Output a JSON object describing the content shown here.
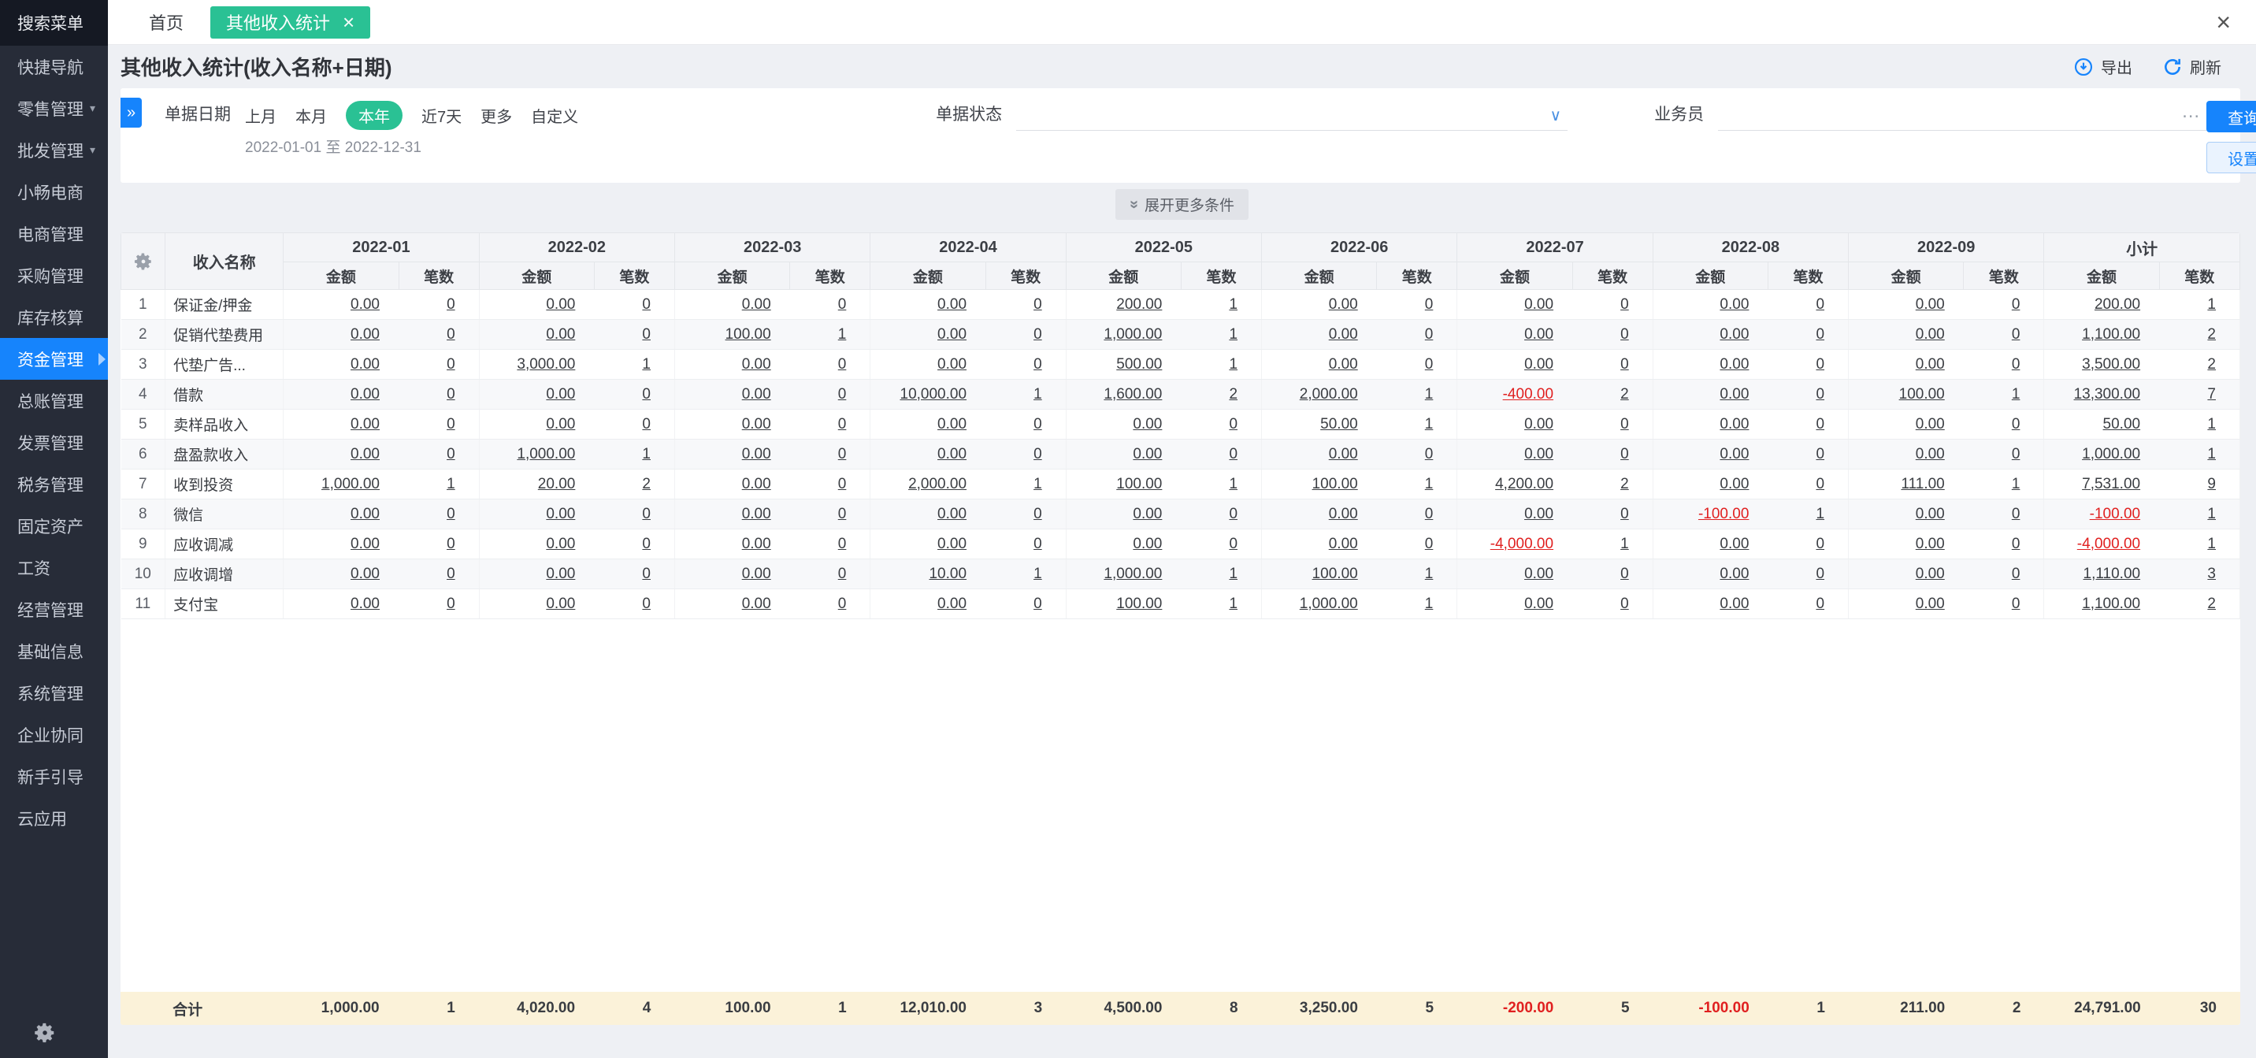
{
  "sidebar": {
    "search": "搜索菜单",
    "items": [
      {
        "label": "快捷导航"
      },
      {
        "label": "零售管理",
        "caret": true
      },
      {
        "label": "批发管理",
        "caret": true
      },
      {
        "label": "小畅电商"
      },
      {
        "label": "电商管理"
      },
      {
        "label": "采购管理"
      },
      {
        "label": "库存核算"
      },
      {
        "label": "资金管理",
        "active": true
      },
      {
        "label": "总账管理"
      },
      {
        "label": "发票管理"
      },
      {
        "label": "税务管理"
      },
      {
        "label": "固定资产"
      },
      {
        "label": "工资"
      },
      {
        "label": "经营管理"
      },
      {
        "label": "基础信息"
      },
      {
        "label": "系统管理"
      },
      {
        "label": "企业协同"
      },
      {
        "label": "新手引导"
      },
      {
        "label": "云应用"
      }
    ]
  },
  "tabs": {
    "home": "首页",
    "active": "其他收入统计",
    "close": "×"
  },
  "page": {
    "title": "其他收入统计(收入名称+日期)",
    "export": "导出",
    "refresh": "刷新"
  },
  "filters": {
    "date_label": "单据日期",
    "quick_options": [
      "上月",
      "本月",
      "本年",
      "近7天",
      "更多",
      "自定义"
    ],
    "active_option": "本年",
    "date_range": "2022-01-01 至 2022-12-31",
    "status_label": "单据状态",
    "salesman_label": "业务员",
    "query_button": "查询",
    "settings_button": "设置",
    "expand_button": "展开更多条件",
    "more_dots": "…",
    "select_chevron": "∨",
    "collapse_glyph": "»"
  },
  "icons": {
    "export": "circle-download-icon",
    "refresh": "refresh-icon",
    "column_settings": "gear-icon",
    "sidebar_settings": "gear-icon",
    "expand_more": "double-chevron-down-icon",
    "collapse_panel": "double-chevron-right-icon"
  },
  "grid": {
    "name_header": "收入名称",
    "sub_headers": [
      "金额",
      "笔数"
    ],
    "months": [
      "2022-01",
      "2022-02",
      "2022-03",
      "2022-04",
      "2022-05",
      "2022-06",
      "2022-07",
      "2022-08",
      "2022-09",
      "小计"
    ],
    "rows": [
      {
        "name": "保证金/押金",
        "cells": [
          [
            "0.00",
            "0"
          ],
          [
            "0.00",
            "0"
          ],
          [
            "0.00",
            "0"
          ],
          [
            "0.00",
            "0"
          ],
          [
            "200.00",
            "1"
          ],
          [
            "0.00",
            "0"
          ],
          [
            "0.00",
            "0"
          ],
          [
            "0.00",
            "0"
          ],
          [
            "0.00",
            "0"
          ],
          [
            "200.00",
            "1"
          ]
        ]
      },
      {
        "name": "促销代垫费用",
        "cells": [
          [
            "0.00",
            "0"
          ],
          [
            "0.00",
            "0"
          ],
          [
            "100.00",
            "1"
          ],
          [
            "0.00",
            "0"
          ],
          [
            "1,000.00",
            "1"
          ],
          [
            "0.00",
            "0"
          ],
          [
            "0.00",
            "0"
          ],
          [
            "0.00",
            "0"
          ],
          [
            "0.00",
            "0"
          ],
          [
            "1,100.00",
            "2"
          ]
        ]
      },
      {
        "name": "代垫广告...",
        "cells": [
          [
            "0.00",
            "0"
          ],
          [
            "3,000.00",
            "1"
          ],
          [
            "0.00",
            "0"
          ],
          [
            "0.00",
            "0"
          ],
          [
            "500.00",
            "1"
          ],
          [
            "0.00",
            "0"
          ],
          [
            "0.00",
            "0"
          ],
          [
            "0.00",
            "0"
          ],
          [
            "0.00",
            "0"
          ],
          [
            "3,500.00",
            "2"
          ]
        ]
      },
      {
        "name": "借款",
        "cells": [
          [
            "0.00",
            "0"
          ],
          [
            "0.00",
            "0"
          ],
          [
            "0.00",
            "0"
          ],
          [
            "10,000.00",
            "1"
          ],
          [
            "1,600.00",
            "2"
          ],
          [
            "2,000.00",
            "1"
          ],
          [
            "-400.00",
            "2"
          ],
          [
            "0.00",
            "0"
          ],
          [
            "100.00",
            "1"
          ],
          [
            "13,300.00",
            "7"
          ]
        ]
      },
      {
        "name": "卖样品收入",
        "cells": [
          [
            "0.00",
            "0"
          ],
          [
            "0.00",
            "0"
          ],
          [
            "0.00",
            "0"
          ],
          [
            "0.00",
            "0"
          ],
          [
            "0.00",
            "0"
          ],
          [
            "50.00",
            "1"
          ],
          [
            "0.00",
            "0"
          ],
          [
            "0.00",
            "0"
          ],
          [
            "0.00",
            "0"
          ],
          [
            "50.00",
            "1"
          ]
        ]
      },
      {
        "name": "盘盈款收入",
        "cells": [
          [
            "0.00",
            "0"
          ],
          [
            "1,000.00",
            "1"
          ],
          [
            "0.00",
            "0"
          ],
          [
            "0.00",
            "0"
          ],
          [
            "0.00",
            "0"
          ],
          [
            "0.00",
            "0"
          ],
          [
            "0.00",
            "0"
          ],
          [
            "0.00",
            "0"
          ],
          [
            "0.00",
            "0"
          ],
          [
            "1,000.00",
            "1"
          ]
        ]
      },
      {
        "name": "收到投资",
        "cells": [
          [
            "1,000.00",
            "1"
          ],
          [
            "20.00",
            "2"
          ],
          [
            "0.00",
            "0"
          ],
          [
            "2,000.00",
            "1"
          ],
          [
            "100.00",
            "1"
          ],
          [
            "100.00",
            "1"
          ],
          [
            "4,200.00",
            "2"
          ],
          [
            "0.00",
            "0"
          ],
          [
            "111.00",
            "1"
          ],
          [
            "7,531.00",
            "9"
          ]
        ]
      },
      {
        "name": "微信",
        "cells": [
          [
            "0.00",
            "0"
          ],
          [
            "0.00",
            "0"
          ],
          [
            "0.00",
            "0"
          ],
          [
            "0.00",
            "0"
          ],
          [
            "0.00",
            "0"
          ],
          [
            "0.00",
            "0"
          ],
          [
            "0.00",
            "0"
          ],
          [
            "-100.00",
            "1"
          ],
          [
            "0.00",
            "0"
          ],
          [
            "-100.00",
            "1"
          ]
        ]
      },
      {
        "name": "应收调减",
        "cells": [
          [
            "0.00",
            "0"
          ],
          [
            "0.00",
            "0"
          ],
          [
            "0.00",
            "0"
          ],
          [
            "0.00",
            "0"
          ],
          [
            "0.00",
            "0"
          ],
          [
            "0.00",
            "0"
          ],
          [
            "-4,000.00",
            "1"
          ],
          [
            "0.00",
            "0"
          ],
          [
            "0.00",
            "0"
          ],
          [
            "-4,000.00",
            "1"
          ]
        ]
      },
      {
        "name": "应收调增",
        "cells": [
          [
            "0.00",
            "0"
          ],
          [
            "0.00",
            "0"
          ],
          [
            "0.00",
            "0"
          ],
          [
            "10.00",
            "1"
          ],
          [
            "1,000.00",
            "1"
          ],
          [
            "100.00",
            "1"
          ],
          [
            "0.00",
            "0"
          ],
          [
            "0.00",
            "0"
          ],
          [
            "0.00",
            "0"
          ],
          [
            "1,110.00",
            "3"
          ]
        ]
      },
      {
        "name": "支付宝",
        "cells": [
          [
            "0.00",
            "0"
          ],
          [
            "0.00",
            "0"
          ],
          [
            "0.00",
            "0"
          ],
          [
            "0.00",
            "0"
          ],
          [
            "100.00",
            "1"
          ],
          [
            "1,000.00",
            "1"
          ],
          [
            "0.00",
            "0"
          ],
          [
            "0.00",
            "0"
          ],
          [
            "0.00",
            "0"
          ],
          [
            "1,100.00",
            "2"
          ]
        ]
      }
    ],
    "footer": {
      "label": "合计",
      "cells": [
        [
          "1,000.00",
          "1"
        ],
        [
          "4,020.00",
          "4"
        ],
        [
          "100.00",
          "1"
        ],
        [
          "12,010.00",
          "3"
        ],
        [
          "4,500.00",
          "8"
        ],
        [
          "3,250.00",
          "5"
        ],
        [
          "-200.00",
          "5"
        ],
        [
          "-100.00",
          "1"
        ],
        [
          "211.00",
          "2"
        ],
        [
          "24,791.00",
          "30"
        ]
      ]
    }
  },
  "colors": {
    "accent": "#1684fc",
    "tab_green": "#2ac194",
    "negative": "#e02020",
    "footer_bg": "#fbf2d9",
    "sidebar_bg": "#272c38"
  }
}
